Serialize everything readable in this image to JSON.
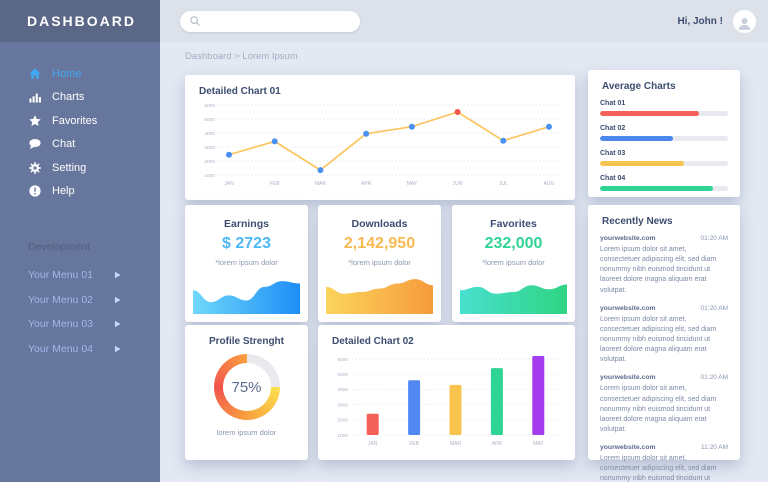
{
  "app": {
    "title": "DASHBOARD"
  },
  "topbar": {
    "search": {
      "placeholder": "",
      "value": ""
    },
    "greeting": "Hi, John !"
  },
  "breadcrumb": "Dashboard > Lorem Ipsum",
  "sidebar": {
    "nav": [
      {
        "label": "Home",
        "icon": "home-icon",
        "active": true
      },
      {
        "label": "Charts",
        "icon": "bar-chart-icon",
        "active": false
      },
      {
        "label": "Favorites",
        "icon": "star-icon",
        "active": false
      },
      {
        "label": "Chat",
        "icon": "chat-icon",
        "active": false
      },
      {
        "label": "Setting",
        "icon": "gear-icon",
        "active": false
      },
      {
        "label": "Help",
        "icon": "help-icon",
        "active": false
      }
    ],
    "section_label": "Development",
    "dev_menu": [
      "Your Menu 01",
      "Your Menu 02",
      "Your Menu 03",
      "Your Menu 04"
    ]
  },
  "cards": {
    "chart01": {
      "title": "Detailed Chart 01",
      "chart_data": {
        "type": "line",
        "x": [
          "JAN",
          "FEB",
          "MAR",
          "APR",
          "MAY",
          "JUN",
          "JUL",
          "AUG"
        ],
        "values": [
          2450,
          3400,
          1350,
          3950,
          4450,
          5500,
          3450,
          4450
        ],
        "yticks": [
          "6000",
          "5000",
          "4000",
          "3000",
          "2000",
          "1000"
        ],
        "ylim": [
          1000,
          6000
        ],
        "grid": "dotted horizontal",
        "line_color": "#fbc55d",
        "point_color": "#4a90f2",
        "highlight_index": 5,
        "highlight_color": "#f4554c"
      }
    },
    "average": {
      "title": "Average Charts",
      "bars": [
        {
          "label": "Chat 01",
          "percent": 77,
          "color": "#f4605a"
        },
        {
          "label": "Chat 02",
          "percent": 57,
          "color": "#4a88ee"
        },
        {
          "label": "Chat 03",
          "percent": 66,
          "color": "#f9c44e"
        },
        {
          "label": "Chat 04",
          "percent": 88,
          "color": "#2fd495"
        }
      ]
    },
    "stats": [
      {
        "title": "Earnings",
        "value": "$ 2723",
        "subtitle": "*lorem ipsum dolor",
        "value_color": "#4cb8f7",
        "gradient": [
          "#6fd8fa",
          "#1e8ef7"
        ],
        "wave": [
          0.45,
          0.8,
          0.6,
          0.75,
          0.35,
          0.18,
          0.25
        ]
      },
      {
        "title": "Downloads",
        "value": "2,142,950",
        "subtitle": "*lorem ipsum dolor",
        "value_color": "#f9b952",
        "gradient": [
          "#fbd45c",
          "#f79b3c"
        ],
        "wave": [
          0.35,
          0.55,
          0.5,
          0.4,
          0.25,
          0.12,
          0.3
        ]
      },
      {
        "title": "Favorites",
        "value": "232,000",
        "subtitle": "*lorem ipsum dolor",
        "value_color": "#2fd495",
        "gradient": [
          "#49e0cf",
          "#2fd483"
        ],
        "wave": [
          0.45,
          0.35,
          0.55,
          0.5,
          0.3,
          0.42,
          0.28
        ]
      }
    ],
    "news": {
      "title": "Recently News",
      "items": [
        {
          "source": "yourwebsite.com",
          "time": "01:20 AM",
          "text": "Lorem ipsum dolor sit amet, consectetuer adipiscing elit, sed diam nonummy nibh euismod tincidunt ut laoreet dolore magna aliquam erat volutpat."
        },
        {
          "source": "yourwebsite.com",
          "time": "01:20 AM",
          "text": "Lorem ipsum dolor sit amet, consectetuer adipiscing elit, sed diam nonummy nibh euismod tincidunt ut laoreet dolore magna aliquam erat volutpat."
        },
        {
          "source": "yourwebsite.com",
          "time": "01:20 AM",
          "text": "Lorem ipsum dolor sit amet, consectetuer adipiscing elit, sed diam nonummy nibh euismod tincidunt ut laoreet dolore magna aliquam erat volutpat."
        },
        {
          "source": "yourwebsite.com",
          "time": "11:20 AM",
          "text": "Lorem ipsum dolor sit amet, consectetuer adipiscing elit, sed diam nonummy nibh euismod tincidunt ut laoreet dolore magna aliquam erat volutpat."
        }
      ]
    },
    "profile": {
      "title": "Profile Strenght",
      "percent": 75,
      "percent_label": "75%",
      "subtitle": "lorem ipsum dolor",
      "ring": {
        "track": "#e9eaee",
        "gradient": [
          "#fbe14d",
          "#f9a13f",
          "#f2544d",
          "#f9a13f"
        ]
      }
    },
    "chart02": {
      "title": "Detailed Chart 02",
      "chart_data": {
        "type": "bar",
        "categories": [
          "JAN",
          "FEB",
          "MAR",
          "APR",
          "MAY"
        ],
        "values": [
          2400,
          4600,
          4300,
          5400,
          6200
        ],
        "colors": [
          "#f4605a",
          "#5188f4",
          "#f9c44e",
          "#2fd495",
          "#a43cee"
        ],
        "yticks": [
          "6000",
          "5000",
          "4000",
          "3000",
          "2000",
          "1000"
        ],
        "ylim": [
          1000,
          6000
        ],
        "grid": "dotted horizontal"
      }
    }
  }
}
